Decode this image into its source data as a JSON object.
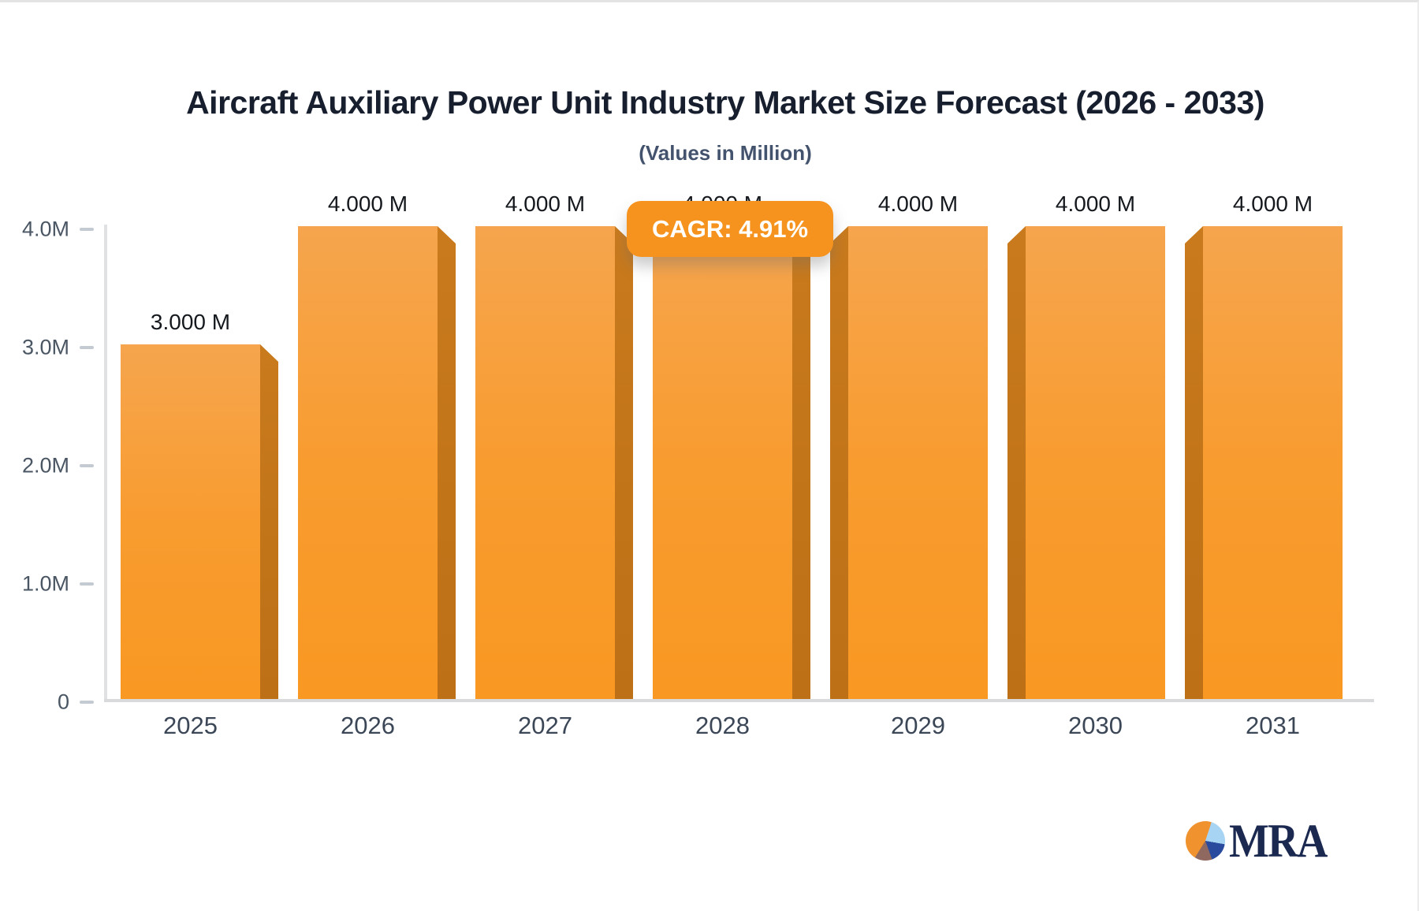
{
  "chart": {
    "title": "Aircraft Auxiliary Power Unit Industry Market Size Forecast (2026 - 2033)",
    "subtitle": "(Values in Million)",
    "cagr_label": "CAGR: 4.91%"
  },
  "chart_data": {
    "type": "bar",
    "title": "Aircraft Auxiliary Power Unit Industry Market Size Forecast (2026 - 2033)",
    "subtitle": "(Values in Million)",
    "unit": "Million",
    "categories": [
      "2025",
      "2026",
      "2027",
      "2028",
      "2029",
      "2030",
      "2031"
    ],
    "values": [
      3.0,
      4.0,
      4.0,
      4.0,
      4.0,
      4.0,
      4.0
    ],
    "value_labels": [
      "3.000 M",
      "4.000 M",
      "4.000 M",
      "4.000 M",
      "4.000 M",
      "4.000 M",
      "4.000 M"
    ],
    "cagr": "4.91%",
    "ylim": [
      0,
      4.0
    ],
    "yticks": [
      {
        "label": "4.0M",
        "value": 4.0
      },
      {
        "label": "3.0M",
        "value": 3.0
      },
      {
        "label": "2.0M",
        "value": 2.0
      },
      {
        "label": "1.0M",
        "value": 1.0
      },
      {
        "label": "0",
        "value": 0.0
      }
    ],
    "grid": false,
    "legend": false,
    "bar_3d_bevel_sides": [
      "right",
      "right",
      "right",
      "right",
      "left",
      "left",
      "left"
    ]
  },
  "colors": {
    "accent": "#f6931e",
    "bar_top": "#f6a54e",
    "bar_mid": "#f89c30",
    "bar_bottom": "#f99822",
    "bevel_top": "#c97a1d",
    "bevel_bottom": "#bd7016",
    "logo_navy": "#1b2950"
  },
  "logo": {
    "text": "MRA"
  }
}
